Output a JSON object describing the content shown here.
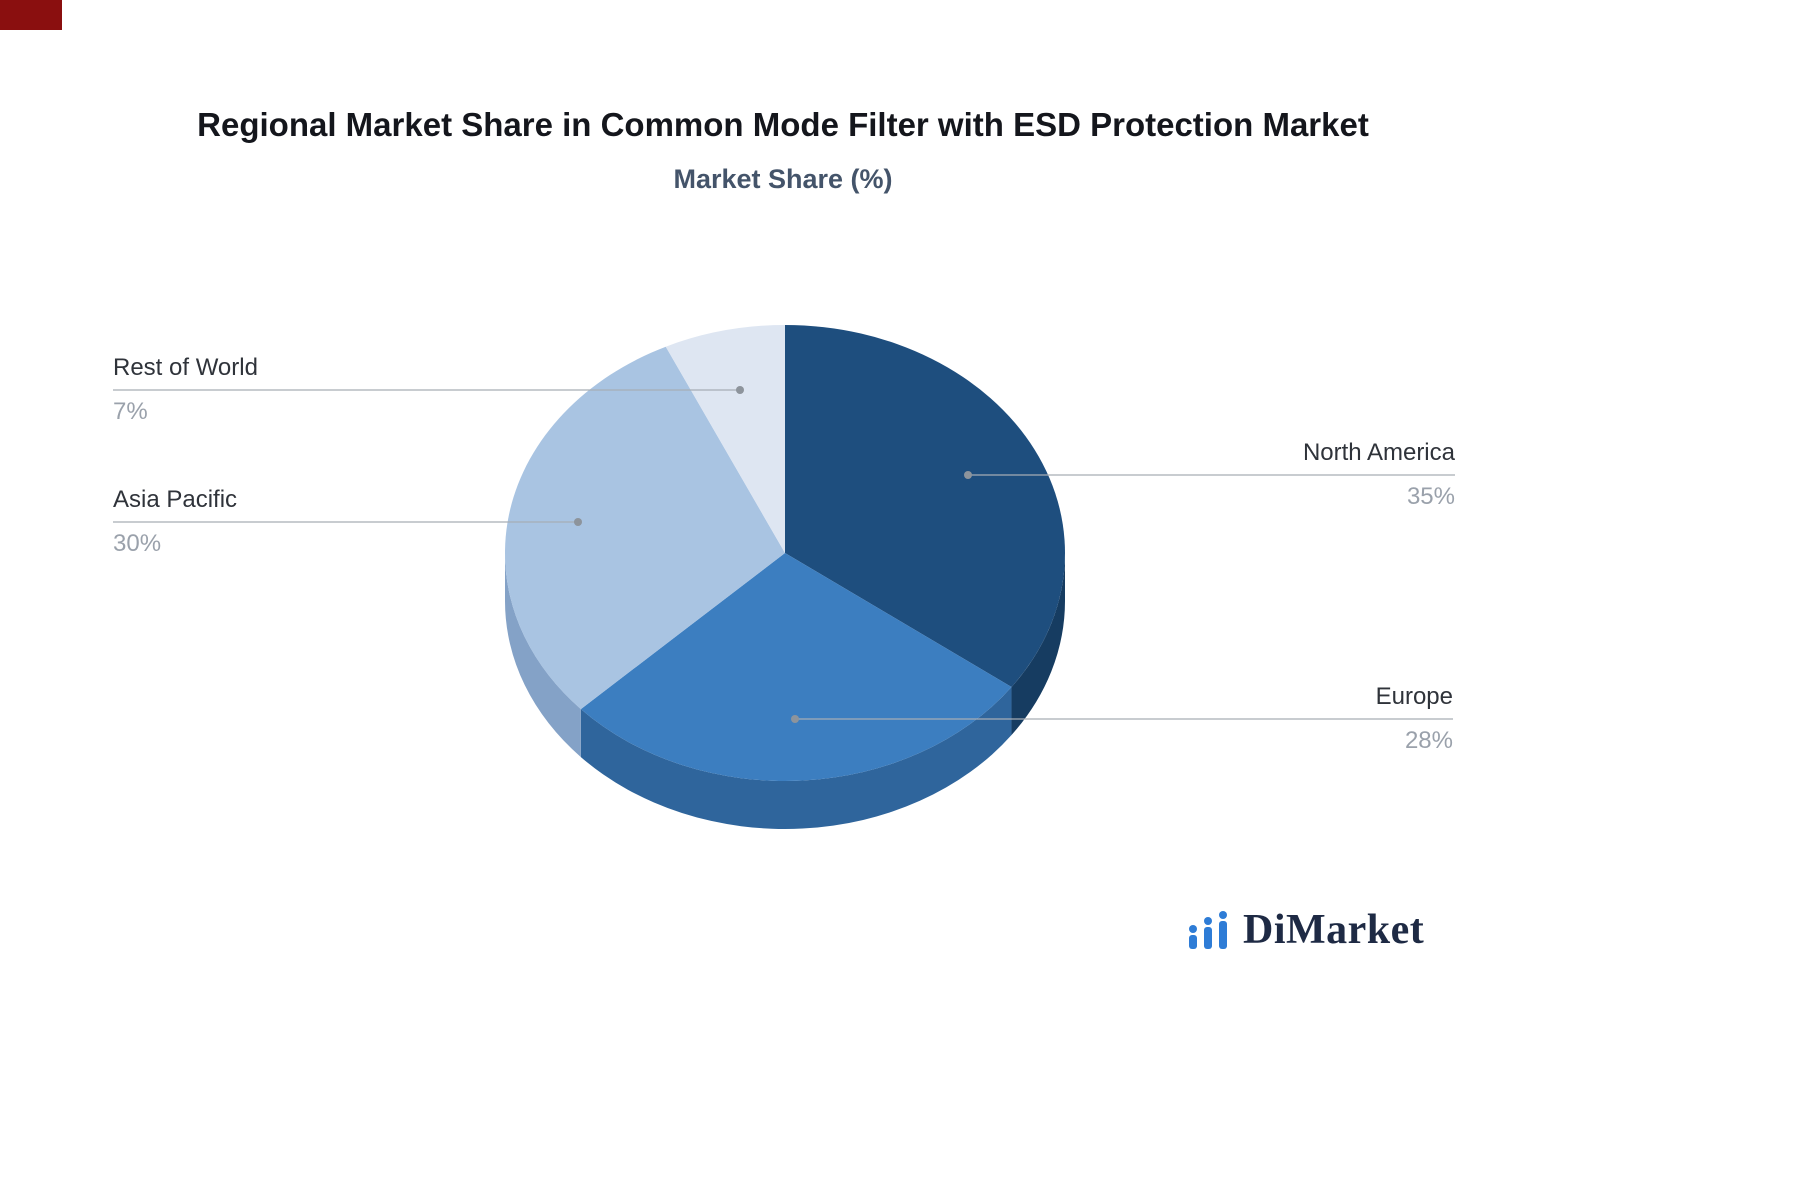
{
  "page": {
    "background": "#ffffff"
  },
  "chart_data": {
    "type": "pie",
    "style": "3d",
    "title": "Regional Market Share in Common Mode Filter with ESD Protection Market",
    "subtitle": "Market Share (%)",
    "unit": "%",
    "categories": [
      "North America",
      "Europe",
      "Asia Pacific",
      "Rest of World"
    ],
    "values": [
      35,
      28,
      30,
      7
    ],
    "labels": [
      "35%",
      "28%",
      "30%",
      "7%"
    ],
    "colors": [
      "#1E4E7E",
      "#3C7EC0",
      "#A9C4E2",
      "#DEE6F2"
    ],
    "side_colors": [
      "#163C61",
      "#2F659C",
      "#84A2C7",
      "#B9C7DD"
    ],
    "start_angle_deg": 0,
    "direction": "clockwise",
    "legend_position": "none",
    "label_style": "callout-lines",
    "callout_line_color": "#a6adb5",
    "callout_dot_color": "#8d949c"
  },
  "branding": {
    "logo_text": "DiMarket",
    "logo_icon": "bar-chart-icon",
    "logo_text_color": "#1e2a44",
    "logo_icon_color": "#2e7cd6"
  }
}
